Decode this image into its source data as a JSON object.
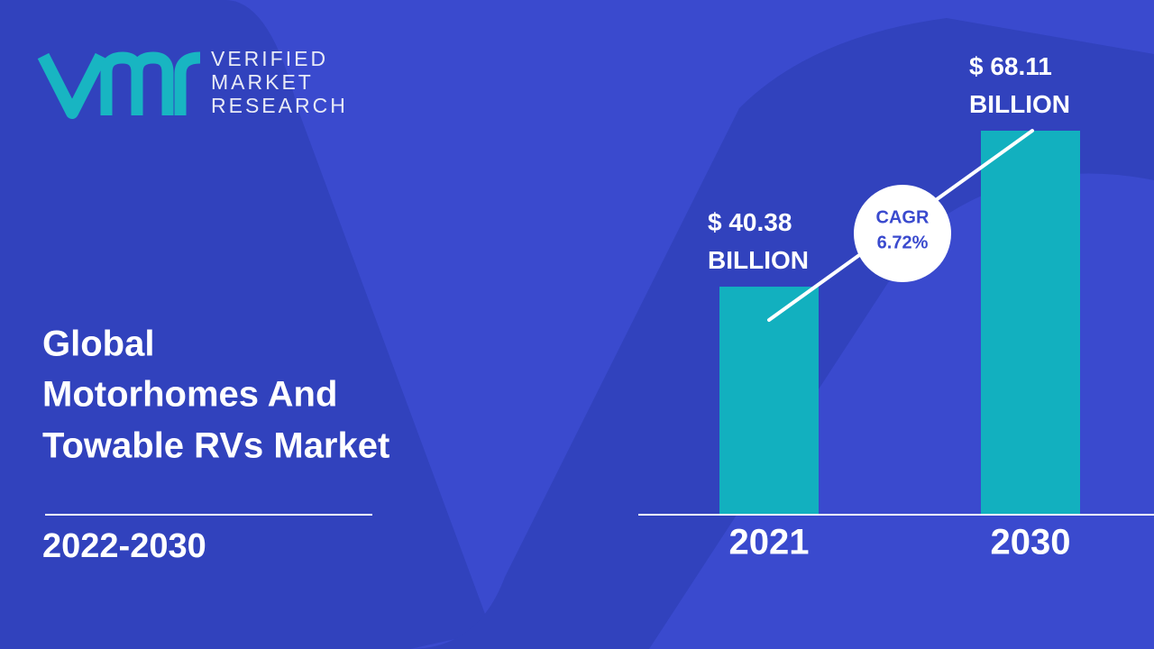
{
  "brand": [
    "VERIFIED",
    "MARKET",
    "RESEARCH"
  ],
  "headline": [
    "Global",
    "Motorhomes And",
    "Towable RVs Market"
  ],
  "period": "2022-2030",
  "chart_data": {
    "type": "bar",
    "categories": [
      "2021",
      "2030"
    ],
    "values": [
      40.38,
      68.11
    ],
    "value_labels": [
      "$ 40.38 BILLION",
      "$ 68.11 BILLION"
    ],
    "color": "#12b0bf",
    "ylim": [
      0,
      75
    ],
    "cagr_label": "CAGR",
    "cagr_value": "6.72%"
  }
}
